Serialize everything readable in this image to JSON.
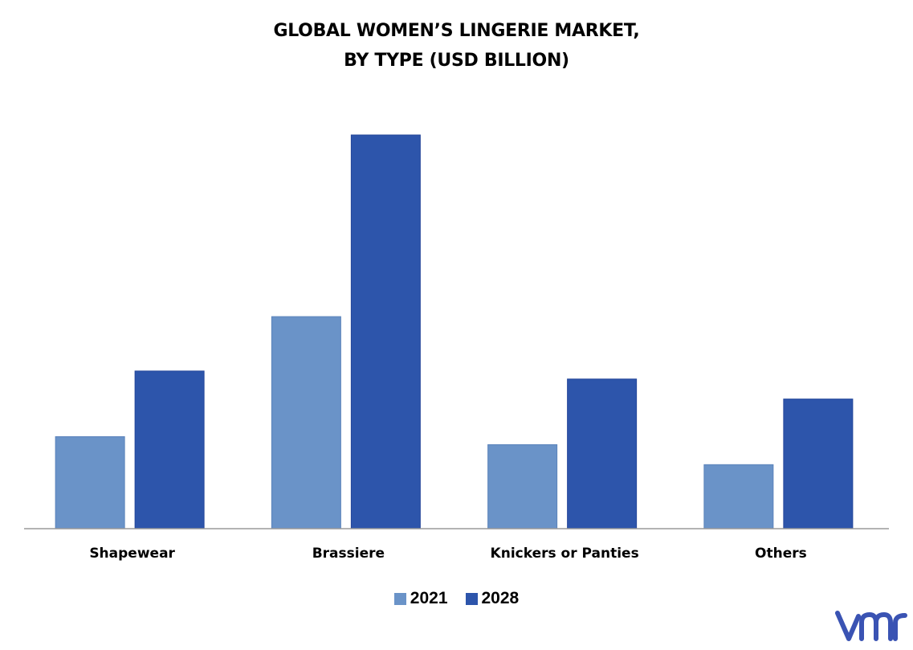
{
  "chart_data": {
    "type": "bar",
    "title_lines": [
      "GLOBAL WOMEN’S LINGERIE MARKET,",
      "BY TYPE (USD BILLION)"
    ],
    "categories": [
      "Shapewear",
      "Brassiere",
      "Knickers or Panties",
      "Others"
    ],
    "series": [
      {
        "name": "2021",
        "values": [
          11.5,
          26.5,
          10.5,
          8.0
        ],
        "color": "#6a93c8"
      },
      {
        "name": "2028",
        "values": [
          19.7,
          49.2,
          18.7,
          16.2
        ],
        "color": "#2d55ab"
      }
    ],
    "ylim": [
      0,
      50
    ],
    "grid": false,
    "legend_position": "bottom"
  },
  "logo": {
    "name": "vmr-logo",
    "color": "#3a53b3"
  }
}
